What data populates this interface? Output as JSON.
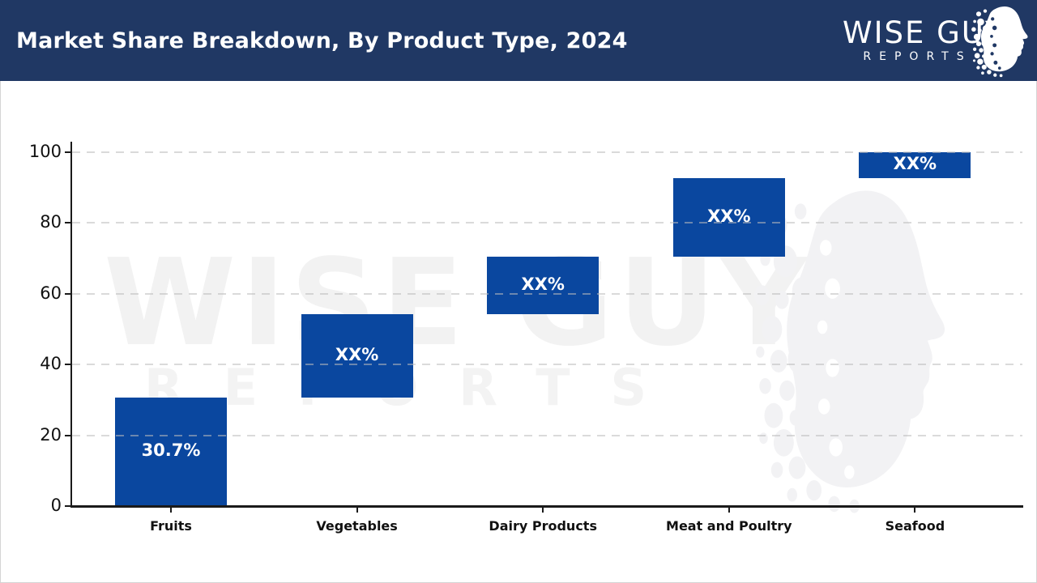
{
  "header": {
    "title": "Market Share Breakdown, By Product Type, 2024",
    "logo": {
      "wordmark": "WISE GUY",
      "subtext": "REPORTS"
    }
  },
  "watermark": {
    "wordmark": "WISE GUY",
    "subtext": "REPORTS"
  },
  "colors": {
    "header_bg": "#203864",
    "bar": "#0a479f",
    "bar_label_text": "#ffffff",
    "axis": "#1a1a1a",
    "gridline": "#dddddd",
    "watermark": "#f2f2f2"
  },
  "chart_data": {
    "type": "bar",
    "variant": "waterfall",
    "title": "Market Share Breakdown, By Product Type, 2024",
    "categories": [
      "Fruits",
      "Vegetables",
      "Dairy Products",
      "Meat and Poultry",
      "Seafood"
    ],
    "segments": [
      {
        "category": "Fruits",
        "start": 0,
        "end": 30.7,
        "label": "30.7%"
      },
      {
        "category": "Vegetables",
        "start": 30.7,
        "end": 54.1,
        "label": "XX%"
      },
      {
        "category": "Dairy Products",
        "start": 54.1,
        "end": 70.3,
        "label": "XX%"
      },
      {
        "category": "Meat and Poultry",
        "start": 70.3,
        "end": 92.6,
        "label": "XX%"
      },
      {
        "category": "Seafood",
        "start": 92.6,
        "end": 100,
        "label": "XX%"
      }
    ],
    "yticks": [
      0,
      20,
      40,
      60,
      80,
      100
    ],
    "ylim": [
      0,
      105
    ],
    "xlabel": "",
    "ylabel": "",
    "grid": "horizontal-dashed",
    "legend": "none"
  }
}
